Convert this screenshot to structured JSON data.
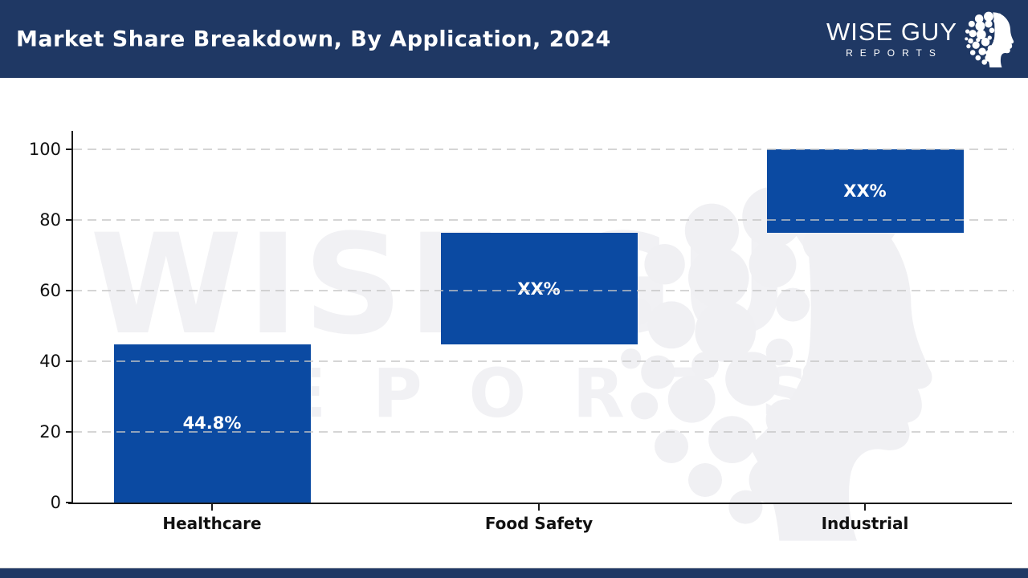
{
  "header": {
    "title": "Market Share Breakdown, By Application, 2024",
    "logo": {
      "line1": "WISE GUY",
      "line2": "REPORTS"
    }
  },
  "watermark": {
    "line1": "WISE GUY",
    "line2": "REPORTS"
  },
  "chart_data": {
    "type": "bar",
    "subtype": "floating-cumulative-percentage-bars",
    "title": "Market Share Breakdown, By Application, 2024",
    "categories": [
      "Healthcare",
      "Food Safety",
      "Industrial"
    ],
    "segments": [
      {
        "category": "Healthcare",
        "label": "44.8%",
        "start": 0,
        "end": 44.8
      },
      {
        "category": "Food Safety",
        "label": "XX%",
        "start": 44.8,
        "end": 76.3
      },
      {
        "category": "Industrial",
        "label": "XX%",
        "start": 76.3,
        "end": 100
      }
    ],
    "xlabel": "",
    "ylabel": "",
    "ylim": [
      0,
      100
    ],
    "yticks": [
      0,
      20,
      40,
      60,
      80,
      100
    ],
    "grid": "horizontal-dashed-above-bars",
    "legend": "none",
    "bar_color": "#0b4aa2",
    "bar_label_color": "#ffffff"
  },
  "colors": {
    "header_navy": "#1f3864",
    "bar_blue": "#0b4aa2",
    "watermark_gray": "#f1f1f4",
    "axis_black": "#1a1a1a"
  }
}
